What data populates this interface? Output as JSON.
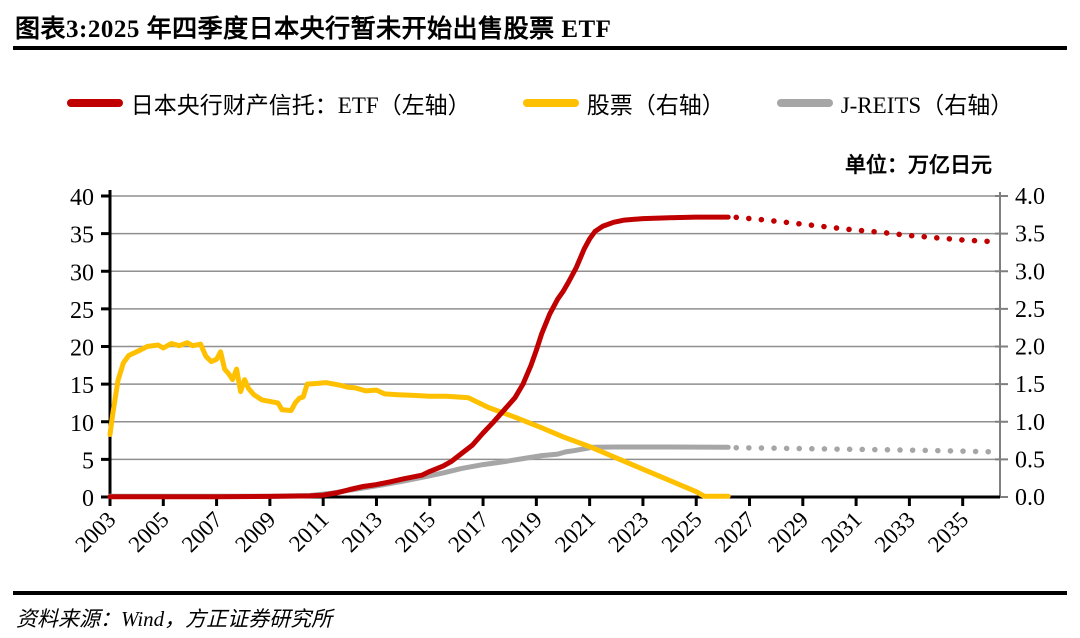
{
  "page": {
    "title": "图表3:2025 年四季度日本央行暂未开始出售股票 ETF",
    "unit_label": "单位：万亿日元",
    "source": "资料来源：Wind，方正证券研究所"
  },
  "chart_data": {
    "type": "line",
    "title": "图表3:2025 年四季度日本央行暂未开始出售股票 ETF",
    "unit": "万亿日元",
    "grid": true,
    "legend_position": "top",
    "x_axis": {
      "min": 2003,
      "max": 2036.4,
      "tick_years": [
        2003,
        2005,
        2007,
        2009,
        2011,
        2013,
        2015,
        2017,
        2019,
        2021,
        2023,
        2025,
        2027,
        2029,
        2031,
        2033,
        2035
      ]
    },
    "left_axis": {
      "label": "左轴",
      "min": 0,
      "max": 40,
      "step": 5,
      "ticks": [
        "0",
        "5",
        "10",
        "15",
        "20",
        "25",
        "30",
        "35",
        "40"
      ]
    },
    "right_axis": {
      "label": "右轴",
      "min": 0,
      "max": 4,
      "step": 0.5,
      "ticks": [
        "0.0",
        "0.5",
        "1.0",
        "1.5",
        "2.0",
        "2.5",
        "3.0",
        "3.5",
        "4.0"
      ]
    },
    "colors": {
      "etf": "#c00000",
      "stocks": "#ffc000",
      "jreits": "#a6a6a6",
      "gridline": "#8f8f8f",
      "axis": "#000000"
    },
    "series": [
      {
        "name": "日本央行财产信托：ETF（左轴）",
        "slug": "boj-etf",
        "axis": "left",
        "color": "#c00000",
        "solid": [
          [
            2003,
            0.02
          ],
          [
            2005,
            0.02
          ],
          [
            2007,
            0.04
          ],
          [
            2009,
            0.08
          ],
          [
            2010.5,
            0.15
          ],
          [
            2011,
            0.25
          ],
          [
            2011.5,
            0.55
          ],
          [
            2012,
            1.0
          ],
          [
            2012.5,
            1.4
          ],
          [
            2013,
            1.65
          ],
          [
            2013.5,
            2.0
          ],
          [
            2014,
            2.4
          ],
          [
            2014.7,
            2.9
          ],
          [
            2015,
            3.4
          ],
          [
            2015.5,
            4.1
          ],
          [
            2015.8,
            4.7
          ],
          [
            2016.2,
            5.8
          ],
          [
            2016.6,
            6.9
          ],
          [
            2017,
            8.5
          ],
          [
            2017.4,
            10.0
          ],
          [
            2017.8,
            11.6
          ],
          [
            2018.2,
            13.2
          ],
          [
            2018.5,
            15.0
          ],
          [
            2018.8,
            17.5
          ],
          [
            2019,
            19.5
          ],
          [
            2019.2,
            21.7
          ],
          [
            2019.5,
            24.3
          ],
          [
            2019.8,
            26.3
          ],
          [
            2020,
            27.3
          ],
          [
            2020.2,
            28.5
          ],
          [
            2020.5,
            30.5
          ],
          [
            2020.8,
            33.0
          ],
          [
            2021,
            34.3
          ],
          [
            2021.2,
            35.3
          ],
          [
            2021.5,
            36.0
          ],
          [
            2021.9,
            36.5
          ],
          [
            2022.3,
            36.8
          ],
          [
            2023,
            37.0
          ],
          [
            2024,
            37.1
          ],
          [
            2025,
            37.2
          ],
          [
            2026.2,
            37.2
          ]
        ],
        "dotted": [
          [
            2026.5,
            37.15
          ],
          [
            2027.2,
            36.95
          ],
          [
            2028,
            36.65
          ],
          [
            2029,
            36.25
          ],
          [
            2030,
            35.85
          ],
          [
            2031,
            35.45
          ],
          [
            2032,
            35.15
          ],
          [
            2033,
            34.75
          ],
          [
            2034,
            34.45
          ],
          [
            2035,
            34.15
          ],
          [
            2036.3,
            33.9
          ]
        ]
      },
      {
        "name": "股票（右轴）",
        "slug": "stocks",
        "axis": "right",
        "color": "#ffc000",
        "solid": [
          [
            2003,
            0.83
          ],
          [
            2003.1,
            1.1
          ],
          [
            2003.3,
            1.55
          ],
          [
            2003.5,
            1.78
          ],
          [
            2003.7,
            1.88
          ],
          [
            2004,
            1.93
          ],
          [
            2004.4,
            2.0
          ],
          [
            2004.8,
            2.02
          ],
          [
            2005,
            1.98
          ],
          [
            2005.3,
            2.04
          ],
          [
            2005.6,
            2.01
          ],
          [
            2005.9,
            2.05
          ],
          [
            2006.1,
            2.01
          ],
          [
            2006.4,
            2.03
          ],
          [
            2006.6,
            1.87
          ],
          [
            2006.8,
            1.8
          ],
          [
            2007,
            1.83
          ],
          [
            2007.15,
            1.93
          ],
          [
            2007.3,
            1.7
          ],
          [
            2007.45,
            1.64
          ],
          [
            2007.6,
            1.56
          ],
          [
            2007.75,
            1.7
          ],
          [
            2007.9,
            1.4
          ],
          [
            2008.05,
            1.56
          ],
          [
            2008.2,
            1.44
          ],
          [
            2008.4,
            1.36
          ],
          [
            2008.7,
            1.29
          ],
          [
            2009,
            1.27
          ],
          [
            2009.3,
            1.25
          ],
          [
            2009.45,
            1.16
          ],
          [
            2009.8,
            1.15
          ],
          [
            2009.95,
            1.25
          ],
          [
            2010.1,
            1.31
          ],
          [
            2010.25,
            1.33
          ],
          [
            2010.4,
            1.5
          ],
          [
            2010.8,
            1.51
          ],
          [
            2011.1,
            1.52
          ],
          [
            2011.4,
            1.5
          ],
          [
            2011.7,
            1.48
          ],
          [
            2011.9,
            1.46
          ],
          [
            2012.2,
            1.45
          ],
          [
            2012.6,
            1.41
          ],
          [
            2013,
            1.42
          ],
          [
            2013.3,
            1.37
          ],
          [
            2013.8,
            1.36
          ],
          [
            2014.4,
            1.35
          ],
          [
            2015,
            1.34
          ],
          [
            2015.6,
            1.34
          ],
          [
            2016,
            1.33
          ],
          [
            2016.45,
            1.32
          ],
          [
            2017.2,
            1.19
          ],
          [
            2018.2,
            1.06
          ],
          [
            2019.2,
            0.92
          ],
          [
            2020,
            0.8
          ],
          [
            2021,
            0.67
          ],
          [
            2022,
            0.52
          ],
          [
            2023,
            0.37
          ],
          [
            2024,
            0.22
          ],
          [
            2025,
            0.07
          ],
          [
            2025.3,
            0.01
          ],
          [
            2026.2,
            0.01
          ]
        ],
        "dotted": []
      },
      {
        "name": "J-REITS（右轴）",
        "slug": "j-reits",
        "axis": "right",
        "color": "#a6a6a6",
        "solid": [
          [
            2003,
            0.01
          ],
          [
            2006,
            0.01
          ],
          [
            2009,
            0.01
          ],
          [
            2010.5,
            0.02
          ],
          [
            2011.3,
            0.05
          ],
          [
            2012,
            0.09
          ],
          [
            2012.5,
            0.12
          ],
          [
            2013.2,
            0.16
          ],
          [
            2014,
            0.21
          ],
          [
            2014.7,
            0.26
          ],
          [
            2015.5,
            0.32
          ],
          [
            2016.2,
            0.38
          ],
          [
            2017,
            0.43
          ],
          [
            2017.8,
            0.47
          ],
          [
            2018.5,
            0.51
          ],
          [
            2019.2,
            0.55
          ],
          [
            2019.8,
            0.57
          ],
          [
            2020.1,
            0.6
          ],
          [
            2020.4,
            0.615
          ],
          [
            2020.8,
            0.64
          ],
          [
            2021.1,
            0.66
          ],
          [
            2022,
            0.665
          ],
          [
            2024,
            0.665
          ],
          [
            2026.2,
            0.66
          ]
        ],
        "dotted": [
          [
            2026.5,
            0.655
          ],
          [
            2028,
            0.648
          ],
          [
            2030,
            0.638
          ],
          [
            2032,
            0.628
          ],
          [
            2034,
            0.617
          ],
          [
            2036.3,
            0.6
          ]
        ]
      }
    ]
  }
}
